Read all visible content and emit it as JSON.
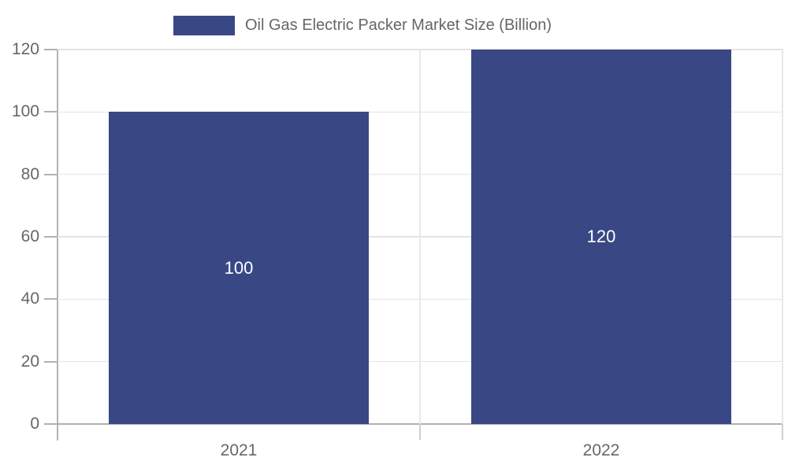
{
  "legend": {
    "label": "Oil Gas Electric Packer Market Size (Billion)"
  },
  "chart_data": {
    "type": "bar",
    "title": "Oil Gas Electric Packer Market Size (Billion)",
    "categories": [
      "2021",
      "2022"
    ],
    "series": [
      {
        "name": "Oil Gas Electric Packer Market Size (Billion)",
        "values": [
          100,
          120
        ]
      }
    ],
    "value_labels": [
      "100",
      "120"
    ],
    "xlabel": "",
    "ylabel": "",
    "ylim": [
      0,
      120
    ],
    "yticks": [
      0,
      20,
      40,
      60,
      80,
      100,
      120
    ],
    "grid": true,
    "legend_position": "top-center",
    "colors": {
      "bar": "#394885",
      "value_label": "#ffffff",
      "axis_text": "#666666",
      "grid_line": "#e4e4e4",
      "axis_line": "#b1b1b1"
    }
  }
}
